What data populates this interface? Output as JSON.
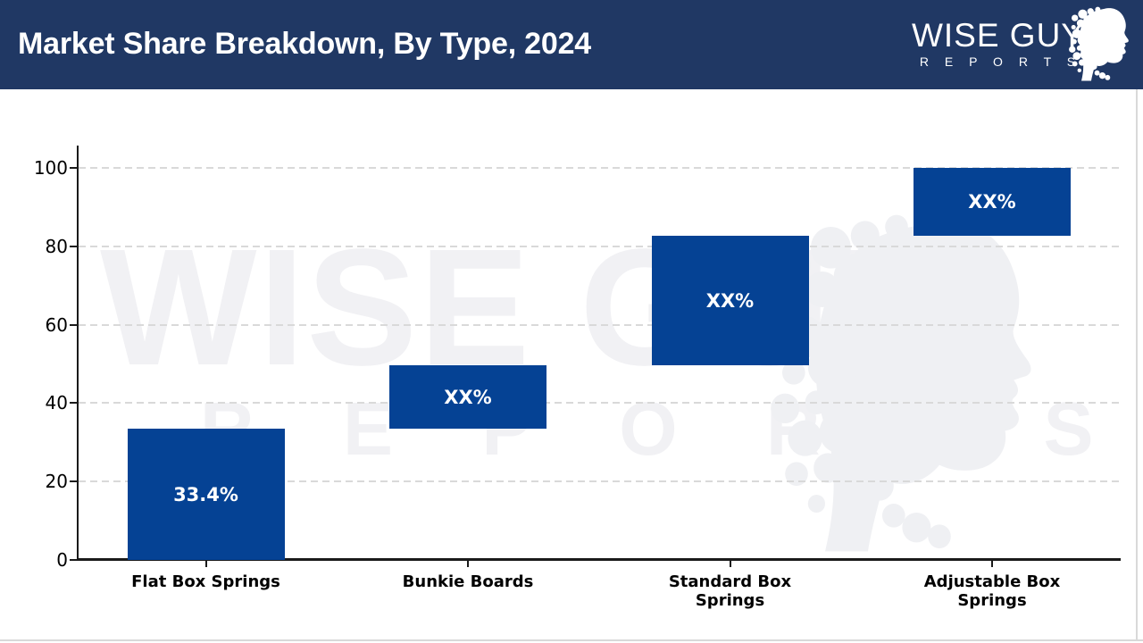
{
  "header": {
    "title": "Market Share Breakdown, By Type, 2024",
    "bg_color": "#203864",
    "logo": {
      "line1": "WISE GUY",
      "line2": "R E P O R T S"
    }
  },
  "watermark": {
    "line1": "WISE GUY",
    "line2": "R E P O R T S"
  },
  "chart_data": {
    "type": "bar",
    "variant": "waterfall",
    "title": "Market Share Breakdown, By Type, 2024",
    "categories": [
      "Flat Box Springs",
      "Bunkie Boards",
      "Standard Box\nSprings",
      "Adjustable Box\nSprings"
    ],
    "series": [
      {
        "name": "Market share (%)",
        "segments": [
          {
            "category": "Flat Box Springs",
            "start": 0,
            "end": 33.4,
            "label": "33.4%"
          },
          {
            "category": "Bunkie Boards",
            "start": 33.4,
            "end": 49.6,
            "label": "XX%"
          },
          {
            "category": "Standard Box Springs",
            "start": 49.6,
            "end": 82.7,
            "label": "XX%"
          },
          {
            "category": "Adjustable Box Springs",
            "start": 82.7,
            "end": 100,
            "label": "XX%"
          }
        ]
      }
    ],
    "xlabel": "",
    "ylabel": "",
    "ylim": [
      0,
      105
    ],
    "yticks": [
      0,
      20,
      40,
      60,
      80,
      100
    ],
    "grid": "horizontal-dashed",
    "legend": "none",
    "colors": {
      "bar": "#054294",
      "bar_label": "#ffffff",
      "grid": "#d9d9d9",
      "axis": "#1a1a1a",
      "tick_label": "#000000",
      "watermark": "#f1f1f4"
    }
  }
}
